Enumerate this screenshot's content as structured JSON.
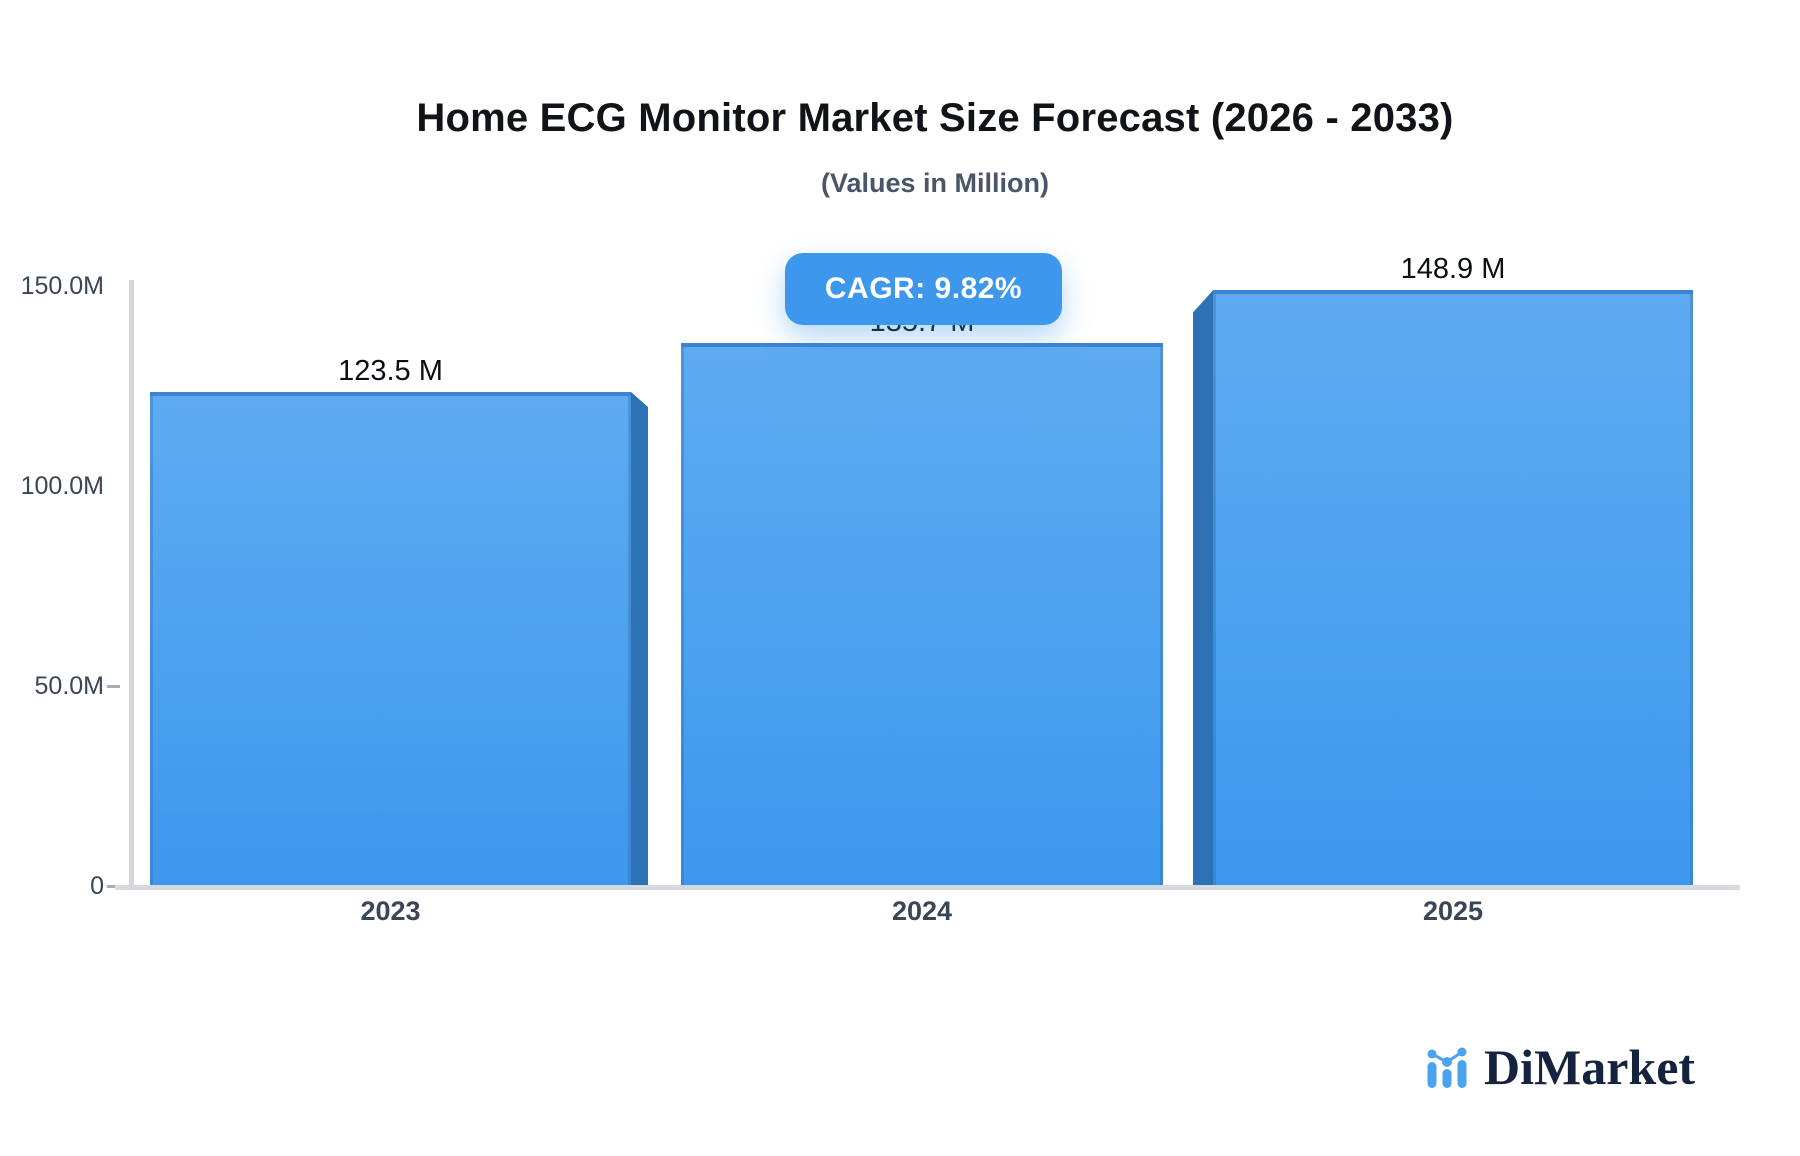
{
  "header": {
    "title": "Home ECG Monitor Market Size Forecast (2026 - 2033)",
    "subtitle": "(Values in Million)"
  },
  "chart_data": {
    "type": "bar",
    "title": "Home ECG Monitor Market Size Forecast (2026 - 2033)",
    "subtitle": "(Values in Million)",
    "categories": [
      "2023",
      "2024",
      "2025"
    ],
    "values": [
      123.5,
      135.7,
      148.9
    ],
    "value_labels": [
      "123.5 M",
      "135.7 M",
      "148.9 M"
    ],
    "unit": "Million",
    "annotation": "CAGR: 9.82%",
    "xlabel": "",
    "ylabel": "",
    "ylim": [
      0,
      150
    ],
    "grid": false,
    "legend": "none",
    "yticks": [
      {
        "label": "150.0M",
        "value": 150,
        "dash": false
      },
      {
        "label": "100.0M",
        "value": 100,
        "dash": false
      },
      {
        "label": "50.0M",
        "value": 50,
        "dash": true
      },
      {
        "label": "0",
        "value": 0,
        "dash": true
      }
    ]
  },
  "colors": {
    "bar_top": "#5eabf1",
    "bar_bottom": "#3e97ee",
    "bar_top_edge": "#3c83d1",
    "bar_side_panel": "#2c72b4",
    "badge_background": "#3d97ec",
    "badge_text": "#ffffff",
    "axis_line": "#d3d6db",
    "tick_text": "#3a4555",
    "title_text": "#101418",
    "subtitle_text": "#4a5568",
    "brand_navy": "#15233f",
    "brand_blue": "#4ba3f0"
  },
  "brand": {
    "name": "DiMarket"
  }
}
